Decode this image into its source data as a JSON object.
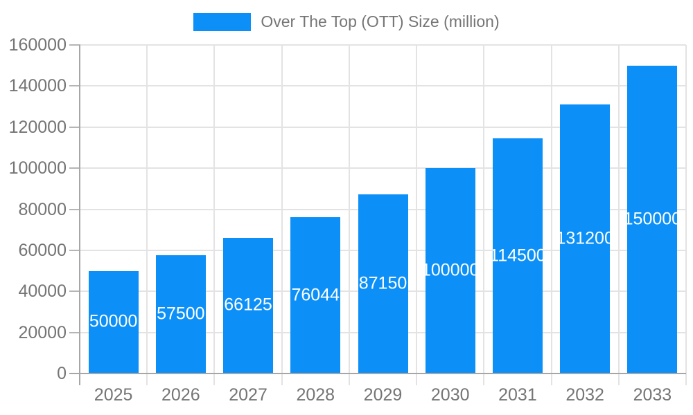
{
  "chart_data": {
    "type": "bar",
    "title": "Over The Top (OTT) Size (million)",
    "legend": {
      "label": "Over The Top (OTT) Size (million)",
      "position": "top-center"
    },
    "categories": [
      "2025",
      "2026",
      "2027",
      "2028",
      "2029",
      "2030",
      "2031",
      "2032",
      "2033"
    ],
    "series": [
      {
        "name": "Over The Top (OTT) Size (million)",
        "values": [
          50000,
          57500,
          66125,
          76044,
          87150,
          100000,
          114500,
          131200,
          150000
        ]
      }
    ],
    "value_labels": [
      "50000",
      "57500",
      "66125",
      "76044",
      "87150",
      "100000",
      "114500",
      "131200",
      "150000"
    ],
    "xlabel": "",
    "ylabel": "",
    "ylim": [
      0,
      160000
    ],
    "ytick_step": 20000,
    "ytick_labels": [
      "0",
      "20000",
      "40000",
      "60000",
      "80000",
      "100000",
      "120000",
      "140000",
      "160000"
    ],
    "grid": true,
    "legend_position": "top",
    "colors": {
      "bar": "#0c90f8",
      "axis_text": "#757575",
      "value_label_text": "#ffffff",
      "gridline": "#e3e3e3",
      "tick": "#b5b5b5",
      "axis_line": "#a6a6a6",
      "background": "#ffffff"
    }
  }
}
